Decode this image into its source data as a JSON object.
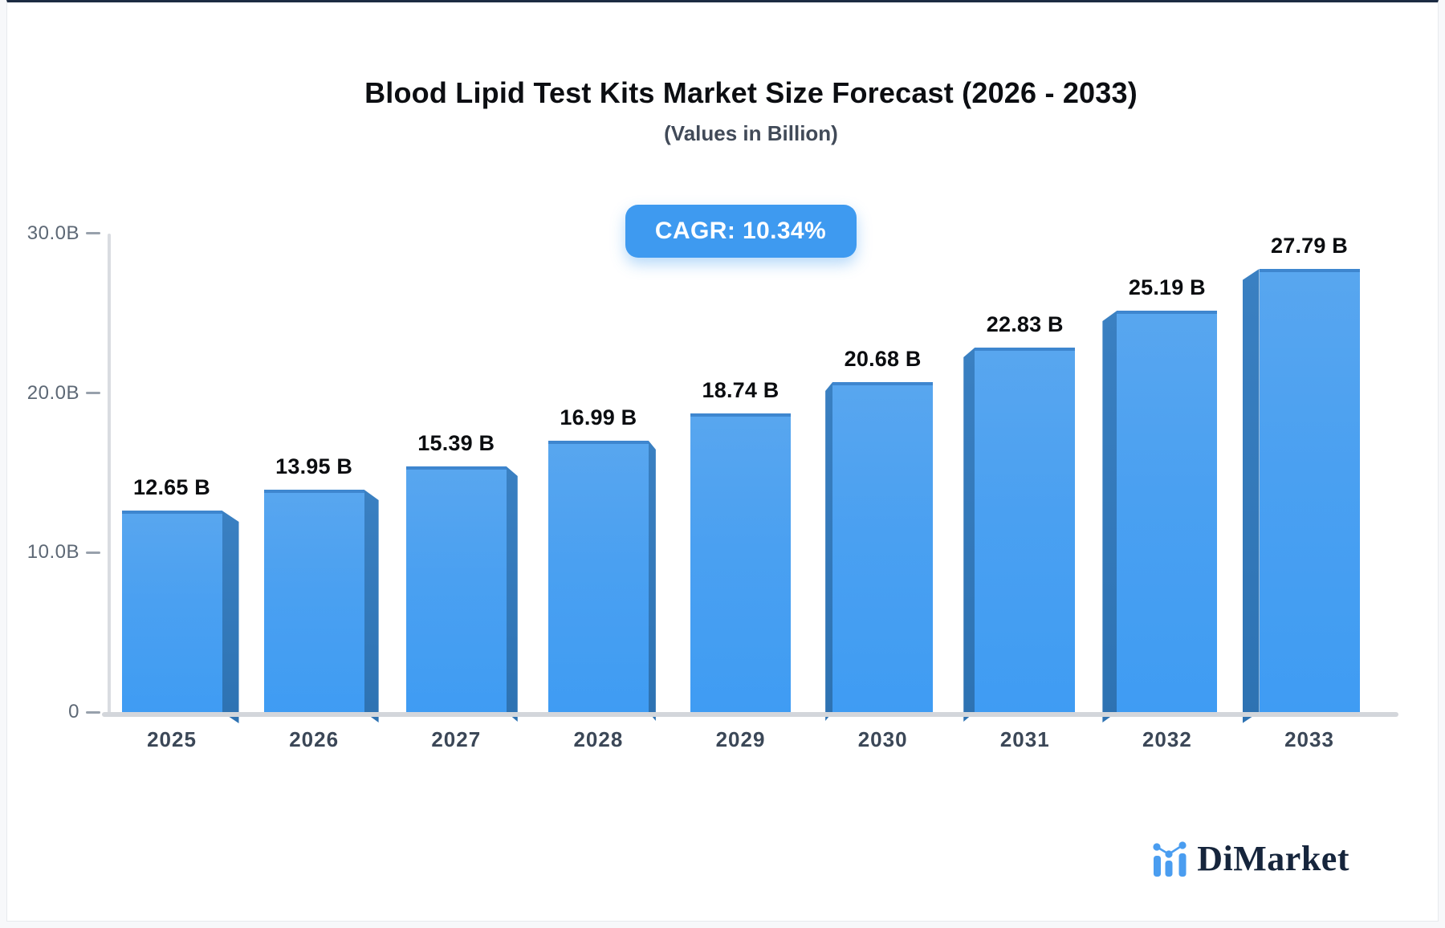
{
  "page": {
    "title": "Blood Lipid Test Kits Market Size Forecast (2026 - 2033)",
    "subtitle": "(Values in Billion)",
    "cagr_badge_label": "CAGR: 10.34%",
    "accent_blue": "#3e9af0",
    "bar_face_top_color": "#58a6ef",
    "bar_face_bottom_color": "#3f9cf3",
    "bar_side_color": "#2d72b2",
    "axis_color": "#d3d6db"
  },
  "chart_data": {
    "type": "bar",
    "title": "Blood Lipid Test Kits Market Size Forecast (2026 - 2033)",
    "subtitle": "(Values in Billion)",
    "cagr_percent": 10.34,
    "categories": [
      "2025",
      "2026",
      "2027",
      "2028",
      "2029",
      "2030",
      "2031",
      "2032",
      "2033"
    ],
    "values": [
      12.65,
      13.95,
      15.39,
      16.99,
      18.74,
      20.68,
      22.83,
      25.19,
      27.79
    ],
    "value_labels": [
      "12.65 B",
      "13.95 B",
      "15.39 B",
      "16.99 B",
      "18.74 B",
      "20.68 B",
      "22.83 B",
      "25.19 B",
      "27.79 B"
    ],
    "xlabel": "",
    "ylabel": "",
    "ylim": [
      0,
      30
    ],
    "y_ticks": [
      {
        "label": "30.0B",
        "value": 30
      },
      {
        "label": "20.0B",
        "value": 20
      },
      {
        "label": "10.0B",
        "value": 10
      },
      {
        "label": "0",
        "value": 0
      }
    ],
    "grid": false,
    "legend": false,
    "style": "3d-perspective-bars, center vanishing point"
  },
  "logo": {
    "text": "DiMarket",
    "icon": "mini-bar-line-chart-icon"
  }
}
